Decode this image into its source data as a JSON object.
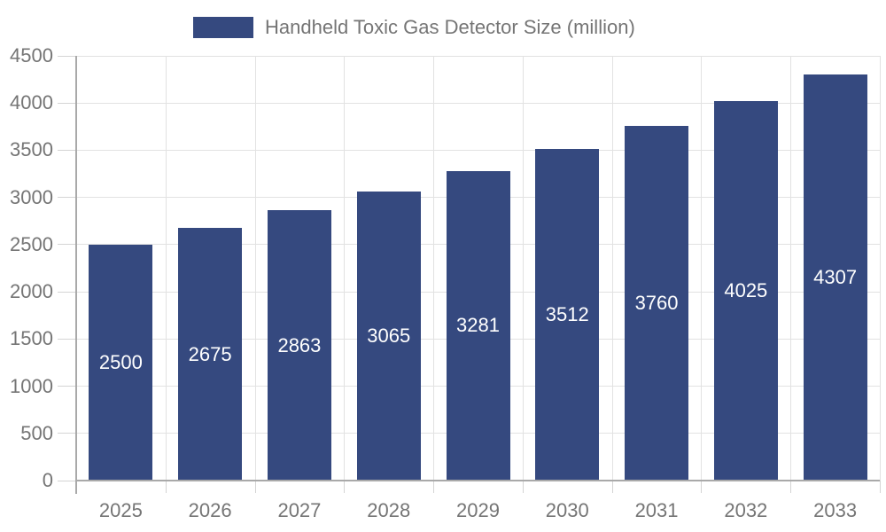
{
  "legend": {
    "label": "Handheld Toxic Gas Detector Size (million)"
  },
  "colors": {
    "bar": "#35497F",
    "grid_line": "#e2e2e2",
    "tick_line": "#d4d4d4",
    "axis_line": "#a9a9a9",
    "axis_label": "#757575",
    "value_label": "#ffffff",
    "background": "#ffffff"
  },
  "chart_data": {
    "type": "bar",
    "title": "Handheld Toxic Gas Detector Size (million)",
    "categories": [
      "2025",
      "2026",
      "2027",
      "2028",
      "2029",
      "2030",
      "2031",
      "2032",
      "2033"
    ],
    "series": [
      {
        "name": "Handheld Toxic Gas Detector Size (million)",
        "values": [
          2500,
          2675,
          2863,
          3065,
          3281,
          3512,
          3760,
          4025,
          4307
        ]
      }
    ],
    "xlabel": "",
    "ylabel": "",
    "ylim": [
      0,
      4500
    ],
    "ytick_interval": 500,
    "yticks": [
      0,
      500,
      1000,
      1500,
      2000,
      2500,
      3000,
      3500,
      4000,
      4500
    ],
    "grid": true,
    "legend_position": "top-center",
    "value_label_position": "inside-center"
  }
}
